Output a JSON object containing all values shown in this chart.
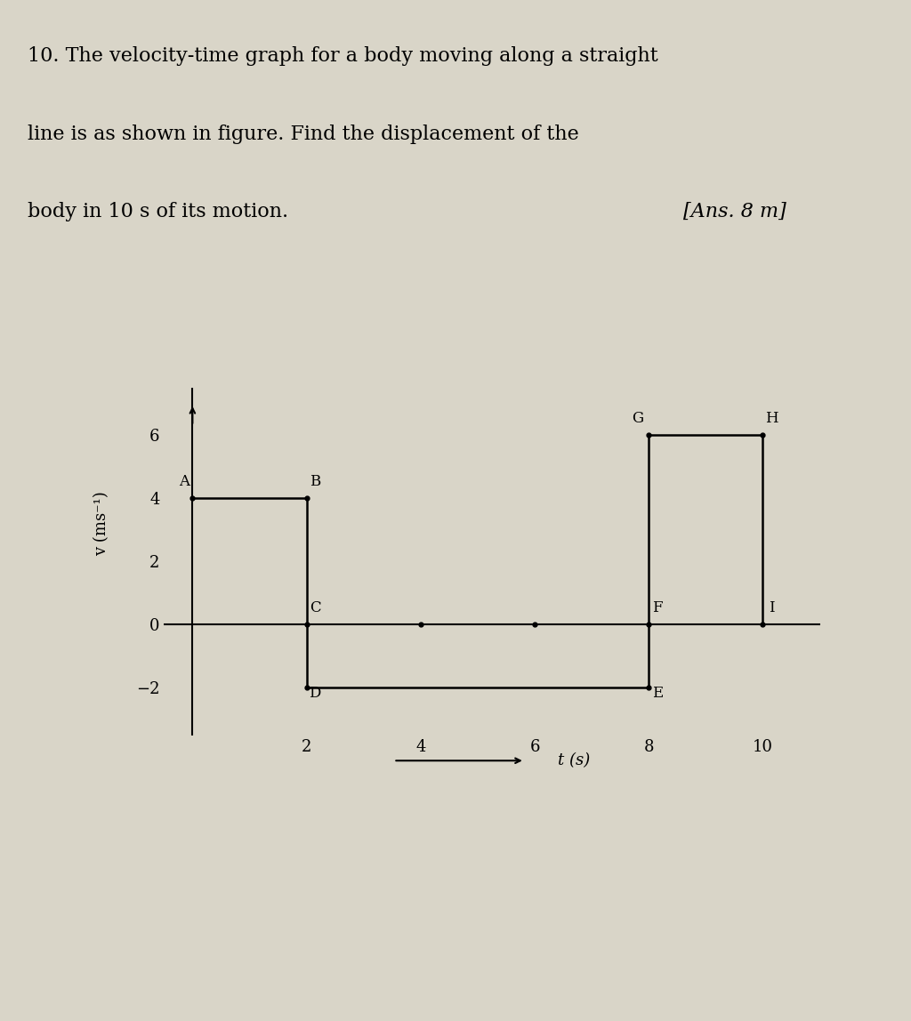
{
  "title_line1": "10. The velocity-time graph for a body moving along a straight",
  "title_line2": "line is as shown in figure. Find the displacement of the",
  "title_line3": "body in 10 s of its motion.",
  "answer": "[Ans. 8 m]",
  "graph": {
    "t_values": [
      0,
      0,
      2,
      2,
      8,
      8,
      10,
      10
    ],
    "v_values": [
      0,
      4,
      4,
      -2,
      -2,
      6,
      6,
      0
    ],
    "xlim": [
      -0.5,
      11
    ],
    "ylim": [
      -3.5,
      7.5
    ],
    "xticks": [
      2,
      4,
      6,
      8,
      10
    ],
    "yticks": [
      -2,
      0,
      2,
      4,
      6
    ],
    "xlabel": "t (s)",
    "ylabel": "v (ms⁻¹)",
    "dot_points": [
      [
        0,
        4
      ],
      [
        2,
        4
      ],
      [
        2,
        0
      ],
      [
        2,
        -2
      ],
      [
        4,
        0
      ],
      [
        6,
        0
      ],
      [
        8,
        -2
      ],
      [
        8,
        0
      ],
      [
        8,
        6
      ],
      [
        10,
        6
      ],
      [
        10,
        0
      ]
    ],
    "labels": {
      "A": [
        0,
        4,
        "right",
        4
      ],
      "B": [
        2,
        4,
        "right",
        4
      ],
      "C": [
        2,
        0,
        "right",
        0
      ],
      "D": [
        2,
        -2,
        "right",
        -2
      ],
      "E": [
        8,
        -2,
        "right",
        -2
      ],
      "F": [
        8,
        0,
        "right",
        0
      ],
      "G": [
        8,
        6,
        "right",
        6
      ],
      "H": [
        10,
        6,
        "right",
        6
      ],
      "I": [
        10,
        0,
        "right",
        0
      ]
    },
    "line_color": "black",
    "line_width": 1.8,
    "background_color": "#d9d5c8"
  }
}
